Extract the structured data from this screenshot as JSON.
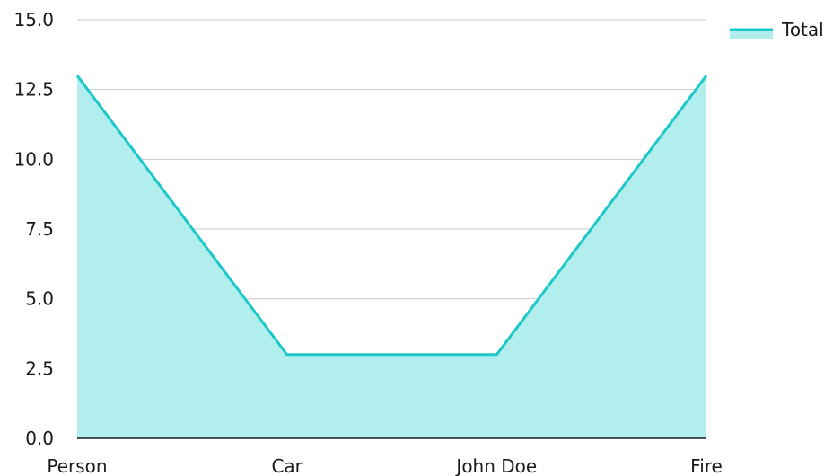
{
  "chart_data": {
    "type": "area",
    "categories": [
      "Person",
      "Car",
      "John Doe",
      "Fire"
    ],
    "series": [
      {
        "name": "Total",
        "values": [
          13,
          3,
          3,
          13
        ]
      }
    ],
    "ylim": [
      0,
      15
    ],
    "yticks": [
      0,
      2.5,
      5,
      7.5,
      10,
      12.5,
      15
    ],
    "grid": true,
    "legend_position": "top-right",
    "colors": {
      "line": "#1fc8c8",
      "fill": "#b2eeee",
      "grid": "#cccccc",
      "axis": "#1a1a1a",
      "text": "#1a1a1a"
    }
  }
}
